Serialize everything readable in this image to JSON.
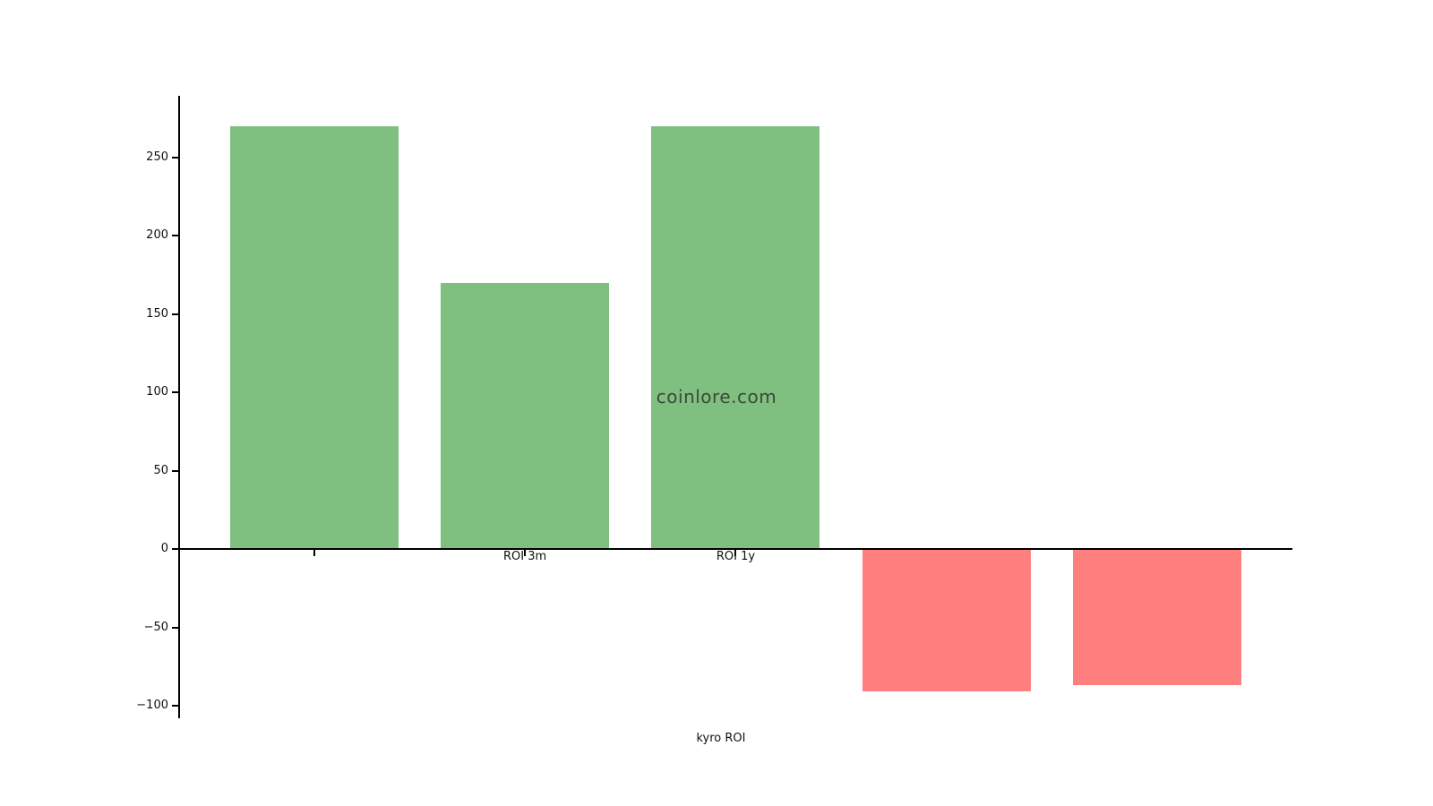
{
  "page": {
    "background": "#ffffff"
  },
  "watermark": {
    "text": "coinlore.com",
    "color": "#3a4a3a"
  },
  "chart_data": {
    "type": "bar",
    "title": "",
    "xlabel": "kyro ROI",
    "ylabel": "",
    "categories": [
      "",
      "ROI 3m",
      "ROI 1y",
      "",
      ""
    ],
    "values": [
      270,
      170,
      270,
      -90,
      -86
    ],
    "bar_colors": [
      "#7fbf7f",
      "#7fbf7f",
      "#7fbf7f",
      "#ff7f7f",
      "#ff7f7f"
    ],
    "positive_color": "#7fbf7f",
    "negative_color": "#ff7f7f",
    "x_tick_indices": [
      0,
      1,
      2
    ],
    "yticks": [
      250,
      200,
      150,
      100,
      50,
      0,
      -50,
      -100
    ],
    "ylim": [
      -108,
      288
    ],
    "grid": false,
    "legend": null,
    "axis_color": "#000000"
  }
}
